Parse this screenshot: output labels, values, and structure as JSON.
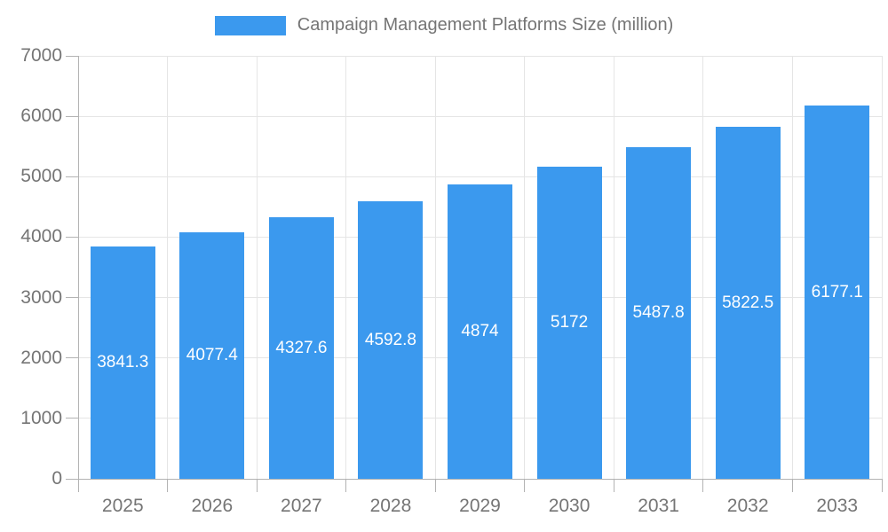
{
  "legend": {
    "label": "Campaign Management Platforms Size (million)"
  },
  "chart_data": {
    "type": "bar",
    "title": "",
    "categories": [
      "2025",
      "2026",
      "2027",
      "2028",
      "2029",
      "2030",
      "2031",
      "2032",
      "2033"
    ],
    "values": [
      3841.3,
      4077.4,
      4327.6,
      4592.8,
      4874,
      5172,
      5487.8,
      5822.5,
      6177.1
    ],
    "series_name": "Campaign Management Platforms Size (million)",
    "xlabel": "",
    "ylabel": "",
    "ylim": [
      0,
      7000
    ],
    "ytick_interval": 1000,
    "yticks": [
      0,
      1000,
      2000,
      3000,
      4000,
      5000,
      6000,
      7000
    ],
    "grid": true,
    "legend_position": "top-center",
    "bar_color": "#3B99EE",
    "value_label_position": "inside-center",
    "value_label_color": "#FFFFFF",
    "axis_color": "#B3B3B3",
    "grid_color": "#E5E5E5",
    "tick_label_color": "#757575"
  }
}
